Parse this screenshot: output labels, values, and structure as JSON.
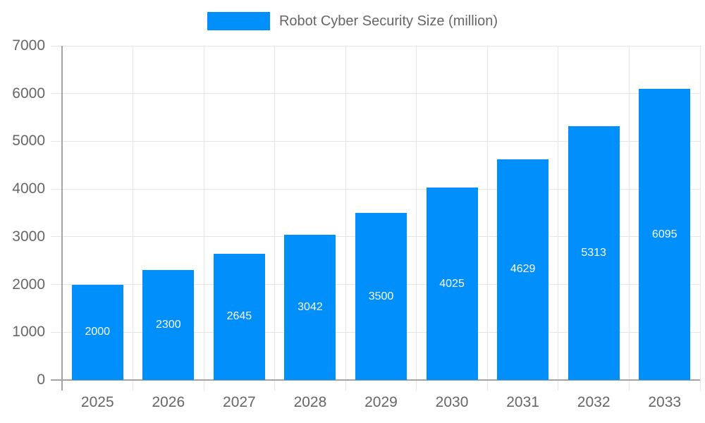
{
  "chart_data": {
    "type": "bar",
    "title": "Robot Cyber Security Size (million)",
    "categories": [
      "2025",
      "2026",
      "2027",
      "2028",
      "2029",
      "2030",
      "2031",
      "2032",
      "2033"
    ],
    "values": [
      2000,
      2300,
      2645,
      3042,
      3500,
      4025,
      4629,
      5313,
      6095
    ],
    "xlabel": "",
    "ylabel": "",
    "ylim": [
      0,
      7000
    ],
    "yticks": [
      0,
      1000,
      2000,
      3000,
      4000,
      5000,
      6000,
      7000
    ],
    "grid": true,
    "legend_position": "top",
    "colors": {
      "bar": "#008FFB",
      "bar_value_label": "#ffffff",
      "axis_text": "#666666",
      "grid_line": "#e5e5e5",
      "axis_border": "#a3a3a3",
      "legend_text": "#666666"
    }
  }
}
